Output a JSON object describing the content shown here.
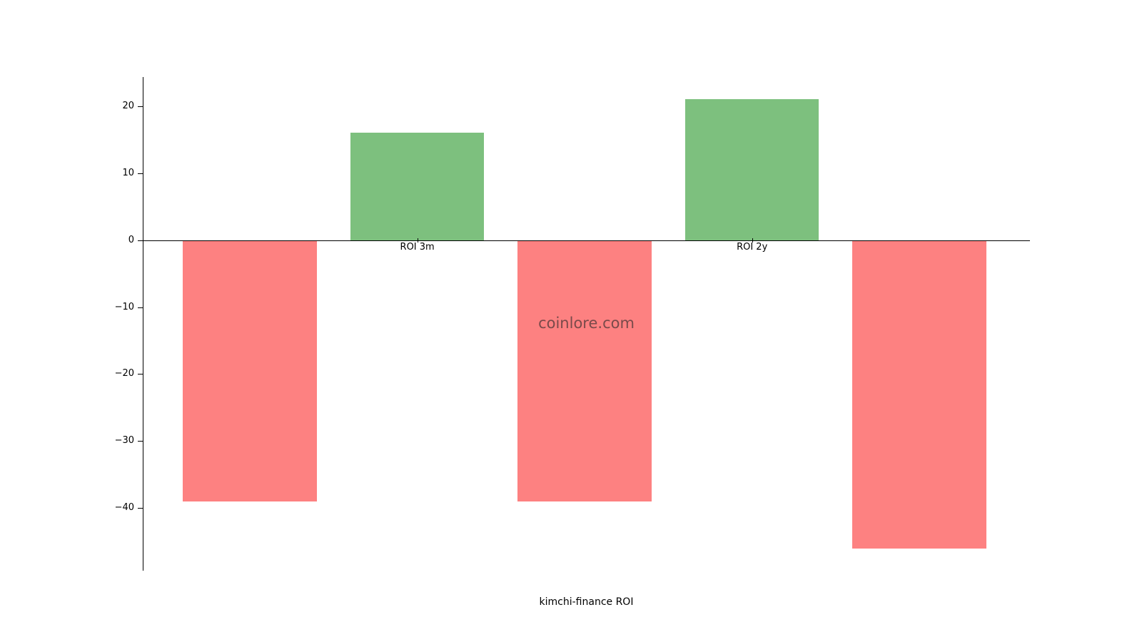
{
  "chart_data": {
    "type": "bar",
    "title": "kimchi-finance ROI",
    "watermark": "coinlore.com",
    "categories": [
      "",
      "ROI 3m",
      "",
      "ROI 2y",
      ""
    ],
    "values": [
      -39,
      16,
      -39,
      21,
      -46
    ],
    "positive_color": "#7dc07e",
    "negative_color": "#fd8181",
    "axis_color": "#000000",
    "text_color": "#000000",
    "yticks": [
      {
        "value": 20,
        "label": "20"
      },
      {
        "value": 10,
        "label": "10"
      },
      {
        "value": 0,
        "label": "0"
      },
      {
        "value": -10,
        "label": "−10"
      },
      {
        "value": -20,
        "label": "−20"
      },
      {
        "value": -30,
        "label": "−30"
      },
      {
        "value": -40,
        "label": "−40"
      }
    ],
    "ylim": [
      -49.35,
      24.35
    ],
    "xlim": [
      -0.64,
      4.66
    ],
    "bar_width": 0.8,
    "grid": false,
    "legend": false,
    "xlabel": "",
    "ylabel": ""
  }
}
